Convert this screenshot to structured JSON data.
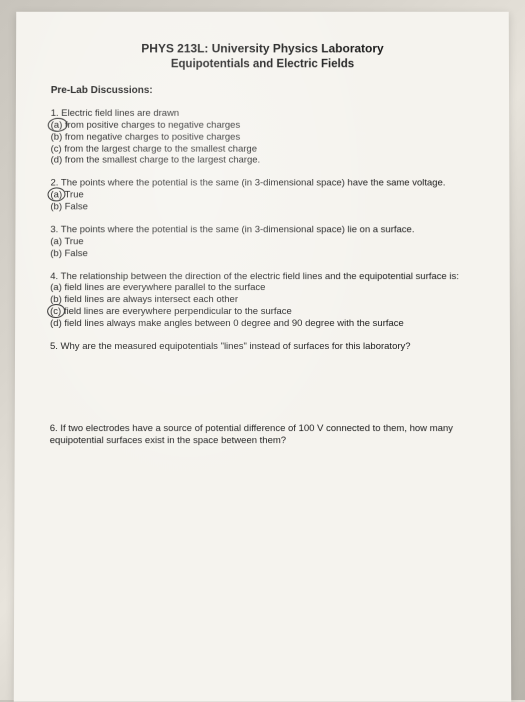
{
  "header": {
    "title": "PHYS 213L: University Physics Laboratory",
    "subtitle": "Equipotentials and Electric Fields"
  },
  "section_head": "Pre-Lab Discussions:",
  "q1": {
    "num": "1. Electric field lines are drawn",
    "a": "(a) from positive charges to negative charges",
    "b": "(b) from negative charges to positive charges",
    "c": "(c) from the largest charge to the smallest charge",
    "d": "(d) from the smallest charge to the largest charge."
  },
  "q2": {
    "num": "2. The points where the potential is the same (in 3-dimensional space) have the same voltage.",
    "a": "(a) True",
    "b": "(b) False"
  },
  "q3": {
    "num": "3. The points where the potential is the same (in 3-dimensional space) lie on a surface.",
    "a": "(a) True",
    "b": "(b) False"
  },
  "q4": {
    "num": "4. The relationship between the direction of the electric field lines and the equipotential surface is:",
    "a": "(a) field lines are everywhere parallel to the surface",
    "b": "(b) field lines are always intersect each other",
    "c": "(c) field lines are everywhere perpendicular to the surface",
    "d": "(d) field lines always make angles between 0 degree and 90 degree with the surface"
  },
  "q5": {
    "text": "5. Why are the measured equipotentials \"lines\" instead of surfaces for this laboratory?"
  },
  "q6": {
    "text": "6. If two electrodes have a source of potential difference of 100 V connected to them, how many equipotential surfaces exist in the space between them?"
  },
  "style": {
    "paper_bg": "#f5f3ee",
    "text_color": "#1a1a1a",
    "title_fontsize": 12,
    "body_fontsize": 9.5,
    "circle_color": "#2a2a2a"
  }
}
